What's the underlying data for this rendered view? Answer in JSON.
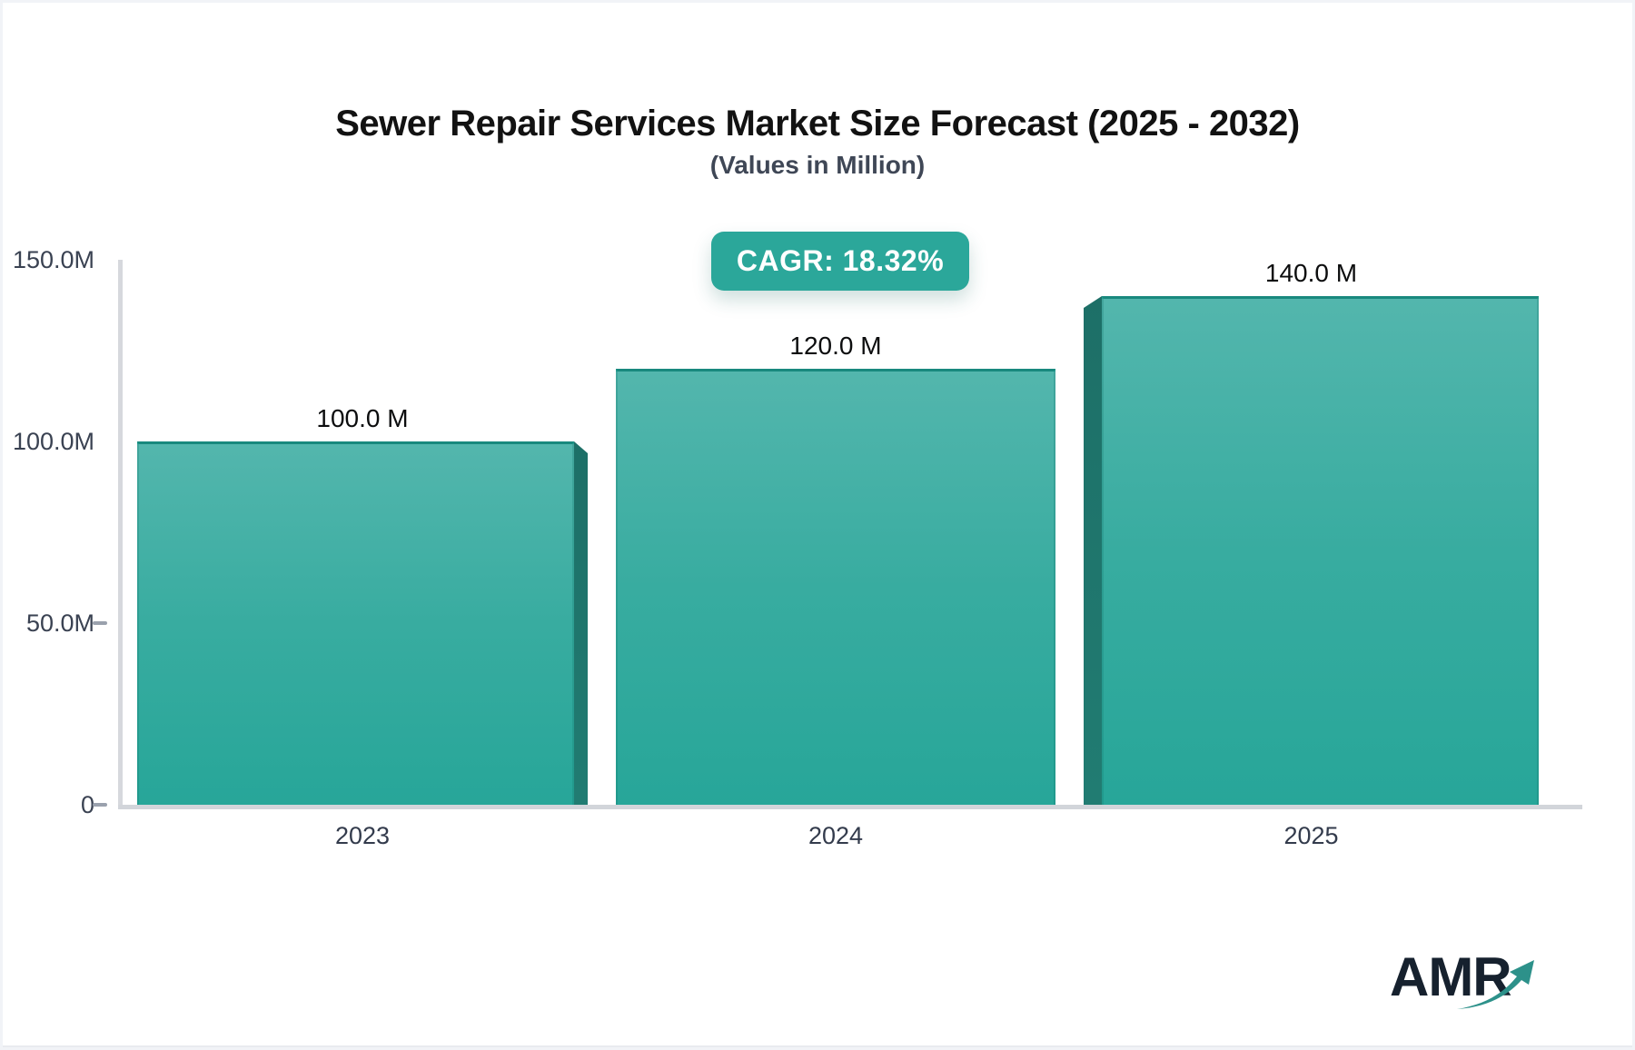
{
  "header": {
    "title": "Sewer Repair Services Market Size Forecast (2025 - 2032)",
    "subtitle": "(Values in Million)"
  },
  "badge": {
    "label": "CAGR: 18.32%"
  },
  "chart_data": {
    "type": "bar",
    "title": "Sewer Repair Services Market Size Forecast (2025 - 2032)",
    "subtitle": "(Values in Million)",
    "unit": "Million",
    "categories": [
      "2023",
      "2024",
      "2025"
    ],
    "values": [
      100.0,
      120.0,
      140.0
    ],
    "value_labels": [
      "100.0 M",
      "120.0 M",
      "140.0 M"
    ],
    "annotations": [
      {
        "text": "CAGR: 18.32%",
        "position": "top-center"
      }
    ],
    "ylim": [
      0,
      150
    ],
    "yticks": [
      {
        "value": 0,
        "label": "0",
        "dash": true
      },
      {
        "value": 50,
        "label": "50.0M",
        "dash": true
      },
      {
        "value": 100,
        "label": "100.0M",
        "dash": false
      },
      {
        "value": 150,
        "label": "150.0M",
        "dash": false
      }
    ],
    "grid": false,
    "legend": "none",
    "bar_style": {
      "effect": "3d-bevel",
      "front_top": "#53b6ad",
      "front_bottom": "#27a699",
      "side": "#1f746b",
      "edge": "#127a6e"
    }
  },
  "colors": {
    "accent_teal": "#2ba79a",
    "axis_line": "#d6d8dd",
    "tick": "#9aa1ad",
    "y_label": "#3a4252",
    "x_label": "#333b4c",
    "value_label": "#0c0d0e",
    "title": "#121212",
    "subtitle": "#3f4756"
  },
  "logo": {
    "text": "AMR",
    "text_color": "#16212e",
    "arrow_color": "#2d918a"
  }
}
